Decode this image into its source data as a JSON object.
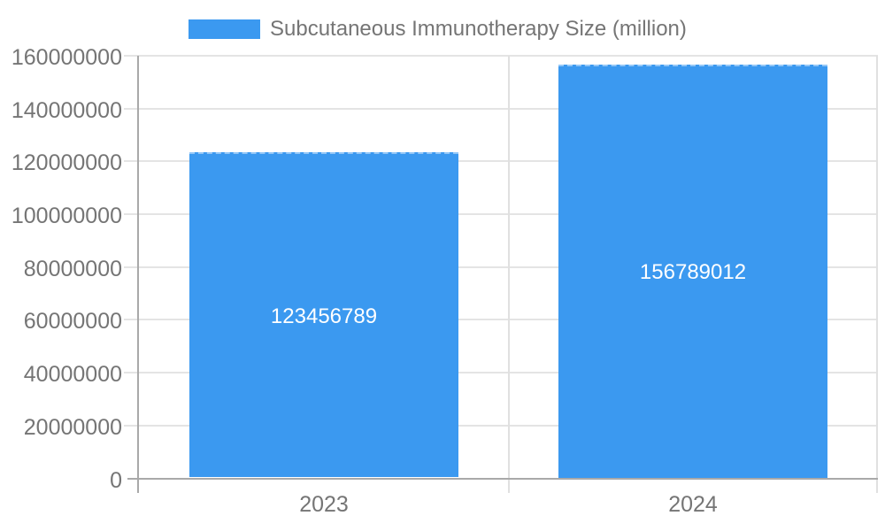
{
  "legend": {
    "label": "Subcutaneous Immunotherapy Size (million)",
    "swatch_color": "#3B99F0"
  },
  "chart_data": {
    "type": "bar",
    "title": "",
    "xlabel": "",
    "ylabel": "",
    "categories": [
      "2023",
      "2024"
    ],
    "series": [
      {
        "name": "Subcutaneous Immunotherapy Size (million)",
        "values": [
          123456789,
          156789012
        ]
      }
    ],
    "value_labels": [
      "123456789",
      "156789012"
    ],
    "ylim": [
      0,
      160000000
    ],
    "yticks": [
      0,
      20000000,
      40000000,
      60000000,
      80000000,
      100000000,
      120000000,
      140000000,
      160000000
    ],
    "ytick_labels": [
      "0",
      "20000000",
      "40000000",
      "60000000",
      "80000000",
      "100000000",
      "120000000",
      "140000000",
      "160000000"
    ],
    "grid": true,
    "legend_position": "top",
    "colors": {
      "bar": "#3B99F0",
      "value_label": "#FFFFFF",
      "axis_text": "#757575",
      "axis_line": "#A9A9A9",
      "gridline": "#E4E4E4",
      "boundary_line": "#E0E0E0",
      "background": "#FFFFFF"
    }
  }
}
